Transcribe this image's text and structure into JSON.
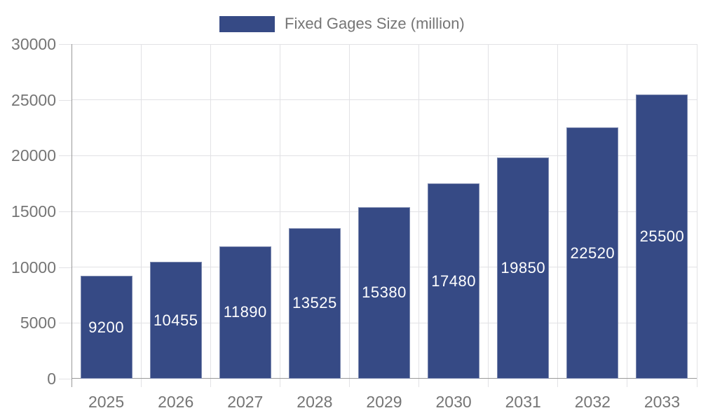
{
  "legend": {
    "label": "Fixed Gages Size (million)"
  },
  "chart_data": {
    "type": "bar",
    "title": "Fixed Gages Size (million)",
    "series_name": "Fixed Gages Size (million)",
    "categories": [
      "2025",
      "2026",
      "2027",
      "2028",
      "2029",
      "2030",
      "2031",
      "2032",
      "2033"
    ],
    "values": [
      9200,
      10455,
      11890,
      13525,
      15380,
      17480,
      19850,
      22520,
      25500
    ],
    "value_labels": [
      "9200",
      "10455",
      "11890",
      "13525",
      "15380",
      "17480",
      "19850",
      "22520",
      "25500"
    ],
    "xlabel": "",
    "ylabel": "",
    "ylim": [
      0,
      30000
    ],
    "ytick_step": 5000,
    "ytick_labels": [
      "0",
      "5000",
      "10000",
      "15000",
      "20000",
      "25000",
      "30000"
    ],
    "grid": true,
    "legend_position": "top-center",
    "colors": {
      "bar": "#364a85",
      "legend_swatch": "#364a85",
      "grid_line": "#e2e2e5",
      "axis_line": "#999999",
      "tick_text": "#757575",
      "value_label_text": "#ffffff",
      "background": "#ffffff"
    }
  }
}
